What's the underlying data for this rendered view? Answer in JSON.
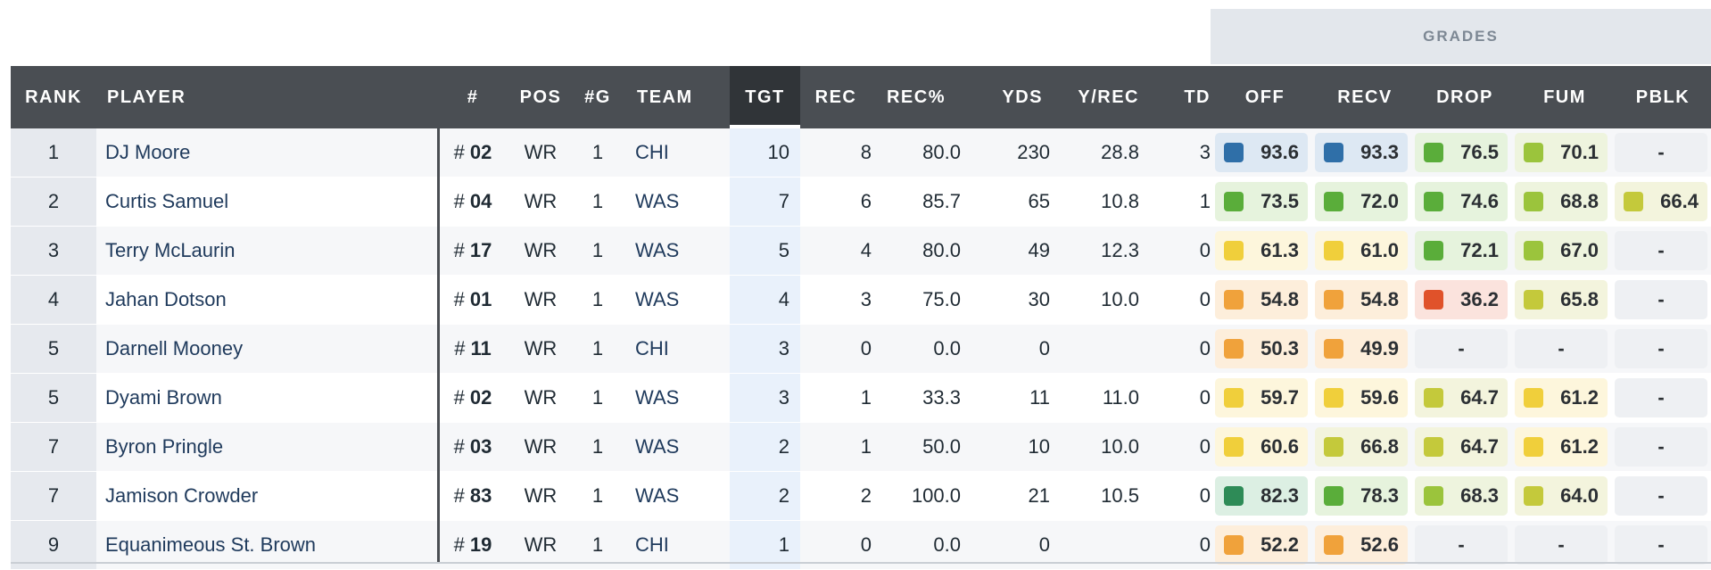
{
  "grades_label": "GRADES",
  "headers": [
    "RANK",
    "PLAYER",
    "#",
    "POS",
    "#G",
    "TEAM",
    "TGT",
    "REC",
    "REC%",
    "YDS",
    "Y/REC",
    "TD",
    "OFF",
    "RECV",
    "DROP",
    "FUM",
    "PBLK"
  ],
  "sorted_column": "TGT",
  "grade_colors": {
    "blue": "#2f6fa8",
    "dark_green": "#2e8b57",
    "green": "#5aad3a",
    "lime": "#9bc43c",
    "yellow_green": "#c4c93b",
    "yellow": "#f0cf3b",
    "orange": "#f0a23b",
    "red_orange": "#e0522a"
  },
  "rows": [
    {
      "rank": "1",
      "player": "DJ Moore",
      "num_prefix": "#",
      "num": "02",
      "pos": "WR",
      "g": "1",
      "team": "CHI",
      "tgt": "10",
      "rec": "8",
      "rec_pct": "80.0",
      "yds": "230",
      "y_rec": "28.8",
      "td": "3",
      "grades": [
        {
          "v": "93.6",
          "c": "blue"
        },
        {
          "v": "93.3",
          "c": "blue"
        },
        {
          "v": "76.5",
          "c": "green"
        },
        {
          "v": "70.1",
          "c": "lime"
        },
        {
          "v": "-",
          "c": ""
        }
      ]
    },
    {
      "rank": "2",
      "player": "Curtis Samuel",
      "num_prefix": "#",
      "num": "04",
      "pos": "WR",
      "g": "1",
      "team": "WAS",
      "tgt": "7",
      "rec": "6",
      "rec_pct": "85.7",
      "yds": "65",
      "y_rec": "10.8",
      "td": "1",
      "grades": [
        {
          "v": "73.5",
          "c": "green"
        },
        {
          "v": "72.0",
          "c": "green"
        },
        {
          "v": "74.6",
          "c": "green"
        },
        {
          "v": "68.8",
          "c": "lime"
        },
        {
          "v": "66.4",
          "c": "yellow_green"
        }
      ]
    },
    {
      "rank": "3",
      "player": "Terry McLaurin",
      "num_prefix": "#",
      "num": "17",
      "pos": "WR",
      "g": "1",
      "team": "WAS",
      "tgt": "5",
      "rec": "4",
      "rec_pct": "80.0",
      "yds": "49",
      "y_rec": "12.3",
      "td": "0",
      "grades": [
        {
          "v": "61.3",
          "c": "yellow"
        },
        {
          "v": "61.0",
          "c": "yellow"
        },
        {
          "v": "72.1",
          "c": "green"
        },
        {
          "v": "67.0",
          "c": "lime"
        },
        {
          "v": "-",
          "c": ""
        }
      ]
    },
    {
      "rank": "4",
      "player": "Jahan Dotson",
      "num_prefix": "#",
      "num": "01",
      "pos": "WR",
      "g": "1",
      "team": "WAS",
      "tgt": "4",
      "rec": "3",
      "rec_pct": "75.0",
      "yds": "30",
      "y_rec": "10.0",
      "td": "0",
      "grades": [
        {
          "v": "54.8",
          "c": "orange"
        },
        {
          "v": "54.8",
          "c": "orange"
        },
        {
          "v": "36.2",
          "c": "red_orange"
        },
        {
          "v": "65.8",
          "c": "yellow_green"
        },
        {
          "v": "-",
          "c": ""
        }
      ]
    },
    {
      "rank": "5",
      "player": "Darnell Mooney",
      "num_prefix": "#",
      "num": "11",
      "pos": "WR",
      "g": "1",
      "team": "CHI",
      "tgt": "3",
      "rec": "0",
      "rec_pct": "0.0",
      "yds": "0",
      "y_rec": "",
      "td": "0",
      "grades": [
        {
          "v": "50.3",
          "c": "orange"
        },
        {
          "v": "49.9",
          "c": "orange"
        },
        {
          "v": "-",
          "c": ""
        },
        {
          "v": "-",
          "c": ""
        },
        {
          "v": "-",
          "c": ""
        }
      ]
    },
    {
      "rank": "5",
      "player": "Dyami Brown",
      "num_prefix": "#",
      "num": "02",
      "pos": "WR",
      "g": "1",
      "team": "WAS",
      "tgt": "3",
      "rec": "1",
      "rec_pct": "33.3",
      "yds": "11",
      "y_rec": "11.0",
      "td": "0",
      "grades": [
        {
          "v": "59.7",
          "c": "yellow"
        },
        {
          "v": "59.6",
          "c": "yellow"
        },
        {
          "v": "64.7",
          "c": "yellow_green"
        },
        {
          "v": "61.2",
          "c": "yellow"
        },
        {
          "v": "-",
          "c": ""
        }
      ]
    },
    {
      "rank": "7",
      "player": "Byron Pringle",
      "num_prefix": "#",
      "num": "03",
      "pos": "WR",
      "g": "1",
      "team": "WAS",
      "tgt": "2",
      "rec": "1",
      "rec_pct": "50.0",
      "yds": "10",
      "y_rec": "10.0",
      "td": "0",
      "grades": [
        {
          "v": "60.6",
          "c": "yellow"
        },
        {
          "v": "66.8",
          "c": "yellow_green"
        },
        {
          "v": "64.7",
          "c": "yellow_green"
        },
        {
          "v": "61.2",
          "c": "yellow"
        },
        {
          "v": "-",
          "c": ""
        }
      ]
    },
    {
      "rank": "7",
      "player": "Jamison Crowder",
      "num_prefix": "#",
      "num": "83",
      "pos": "WR",
      "g": "1",
      "team": "WAS",
      "tgt": "2",
      "rec": "2",
      "rec_pct": "100.0",
      "yds": "21",
      "y_rec": "10.5",
      "td": "0",
      "grades": [
        {
          "v": "82.3",
          "c": "dark_green"
        },
        {
          "v": "78.3",
          "c": "green"
        },
        {
          "v": "68.3",
          "c": "lime"
        },
        {
          "v": "64.0",
          "c": "yellow_green"
        },
        {
          "v": "-",
          "c": ""
        }
      ]
    },
    {
      "rank": "9",
      "player": "Equanimeous St. Brown",
      "num_prefix": "#",
      "num": "19",
      "pos": "WR",
      "g": "1",
      "team": "CHI",
      "tgt": "1",
      "rec": "0",
      "rec_pct": "0.0",
      "yds": "0",
      "y_rec": "",
      "td": "0",
      "grades": [
        {
          "v": "52.2",
          "c": "orange"
        },
        {
          "v": "52.6",
          "c": "orange"
        },
        {
          "v": "-",
          "c": ""
        },
        {
          "v": "-",
          "c": ""
        },
        {
          "v": "-",
          "c": ""
        }
      ]
    }
  ]
}
